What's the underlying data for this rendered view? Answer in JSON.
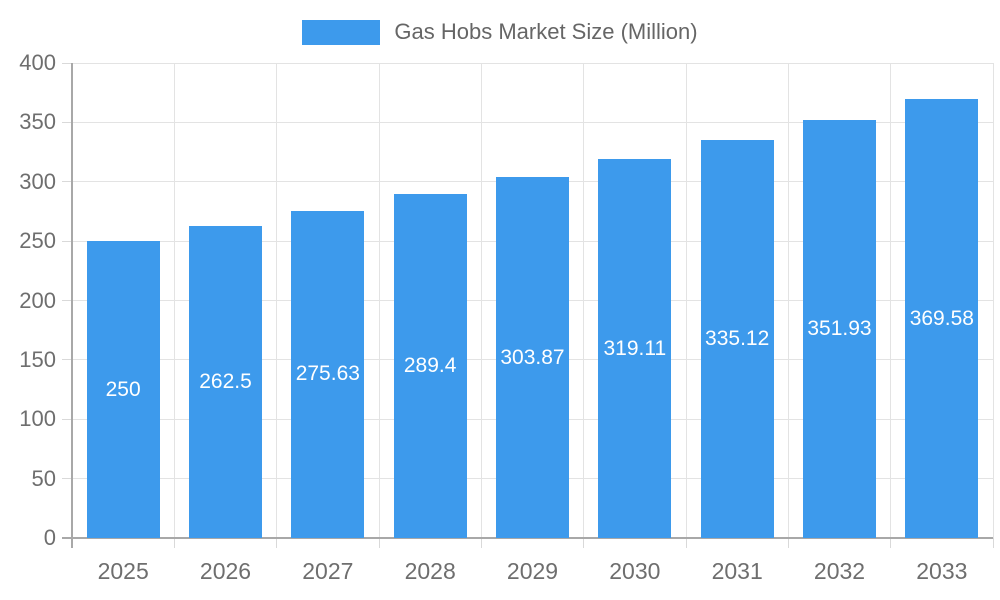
{
  "legend": {
    "label": "Gas Hobs Market Size (Million)"
  },
  "chart_data": {
    "type": "bar",
    "title": "Gas Hobs Market Size (Million)",
    "categories": [
      "2025",
      "2026",
      "2027",
      "2028",
      "2029",
      "2030",
      "2031",
      "2032",
      "2033"
    ],
    "series": [
      {
        "name": "Gas Hobs Market Size (Million)",
        "values": [
          250,
          262.5,
          275.63,
          289.4,
          303.87,
          319.11,
          335.12,
          351.93,
          369.58
        ]
      }
    ],
    "value_labels": [
      "250",
      "262.5",
      "275.63",
      "289.4",
      "303.87",
      "319.11",
      "335.12",
      "351.93",
      "369.58"
    ],
    "xlabel": "",
    "ylabel": "",
    "ylim": [
      0,
      400
    ],
    "yticks": [
      0,
      50,
      100,
      150,
      200,
      250,
      300,
      350,
      400
    ],
    "grid": true,
    "legend_position": "top",
    "colors": {
      "bar": "#3D9AEC",
      "grid_line": "#e3e3e3",
      "tick_mark": "#d9d9d9",
      "axis_line": "#a8a8a8",
      "axis_text": "#6e6e6e",
      "legend_text": "#666666",
      "value_label_text": "#ffffff",
      "background": "#ffffff"
    }
  }
}
